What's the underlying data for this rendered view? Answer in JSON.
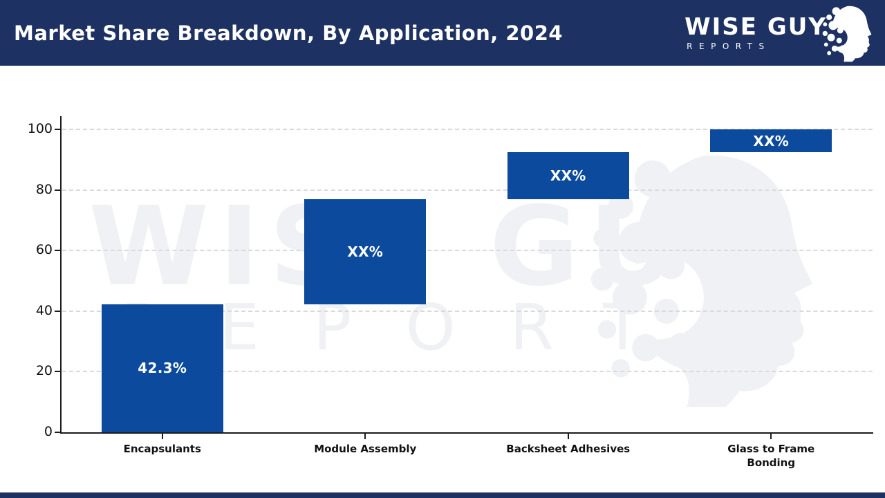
{
  "header": {
    "title": "Market Share Breakdown, By Application, 2024",
    "logo": {
      "line1": "WISE GUY",
      "line2": "REPORTS"
    }
  },
  "watermark": {
    "line1": "WISE GUY",
    "line2": "REPORTS"
  },
  "colors": {
    "header_navy": "#1e3163",
    "bar_blue": "#0b4a9d",
    "watermark_gray": "#f0f1f4",
    "grid_gray": "#d9d9d9",
    "axis_black": "#1c1c1c"
  },
  "chart_data": {
    "type": "bar",
    "subtype": "waterfall",
    "title": "Market Share Breakdown, By Application, 2024",
    "categories": [
      "Encapsulants",
      "Module Assembly",
      "Backsheet Adhesives",
      "Glass to Frame Bonding"
    ],
    "segments": [
      {
        "category": "Encapsulants",
        "start": 0,
        "end": 42.3,
        "label": "42.3%"
      },
      {
        "category": "Module Assembly",
        "start": 42.3,
        "end": 77.0,
        "label": "XX%"
      },
      {
        "category": "Backsheet Adhesives",
        "start": 77.0,
        "end": 92.4,
        "label": "XX%"
      },
      {
        "category": "Glass to Frame Bonding",
        "start": 92.4,
        "end": 100,
        "label": "XX%"
      }
    ],
    "ylim": [
      0,
      100
    ],
    "yticks": [
      0,
      20,
      40,
      60,
      80,
      100
    ],
    "grid": "dashed-horizontal",
    "legend": "none",
    "bar_label_color": "#ffffff"
  }
}
